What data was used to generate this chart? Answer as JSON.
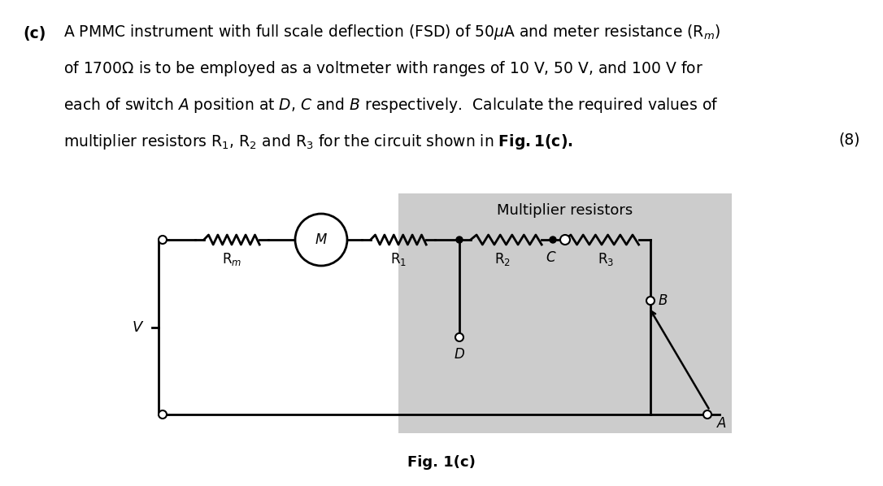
{
  "bg_color": "#ffffff",
  "diagram_bg": "#cccccc",
  "multiplier_label": "Multiplier resistors",
  "title_text": "Fig. 1(c)",
  "header_label": "(c)",
  "marks": "(8)"
}
